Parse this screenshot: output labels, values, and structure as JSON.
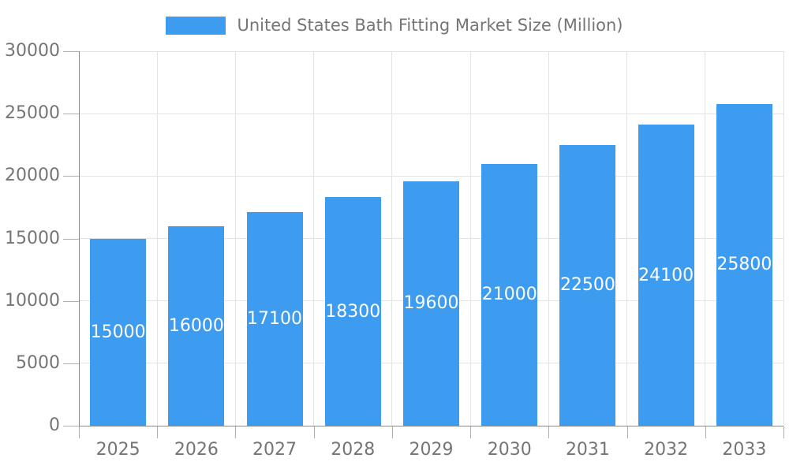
{
  "legend": {
    "label": "United States Bath Fitting Market Size (Million)"
  },
  "chart_data": {
    "type": "bar",
    "title": "United States Bath Fitting Market Size (Million)",
    "categories": [
      "2025",
      "2026",
      "2027",
      "2028",
      "2029",
      "2030",
      "2031",
      "2032",
      "2033"
    ],
    "values": [
      15000,
      16000,
      17100,
      18300,
      19600,
      21000,
      22500,
      24100,
      25800
    ],
    "xlabel": "",
    "ylabel": "",
    "ylim": [
      0,
      30000
    ],
    "y_ticks": [
      0,
      5000,
      10000,
      15000,
      20000,
      25000,
      30000
    ],
    "grid": true,
    "legend_position": "top-center",
    "bar_label_position": "inside-middle",
    "colors": {
      "bar": "#3d9bf0",
      "bar_label": "#ffffff",
      "axis_line": "#8a8a8a",
      "tick_mark": "#b0b0b0",
      "grid_line": "#e3e3e3",
      "tick_text": "#757575",
      "background": "#ffffff"
    }
  }
}
